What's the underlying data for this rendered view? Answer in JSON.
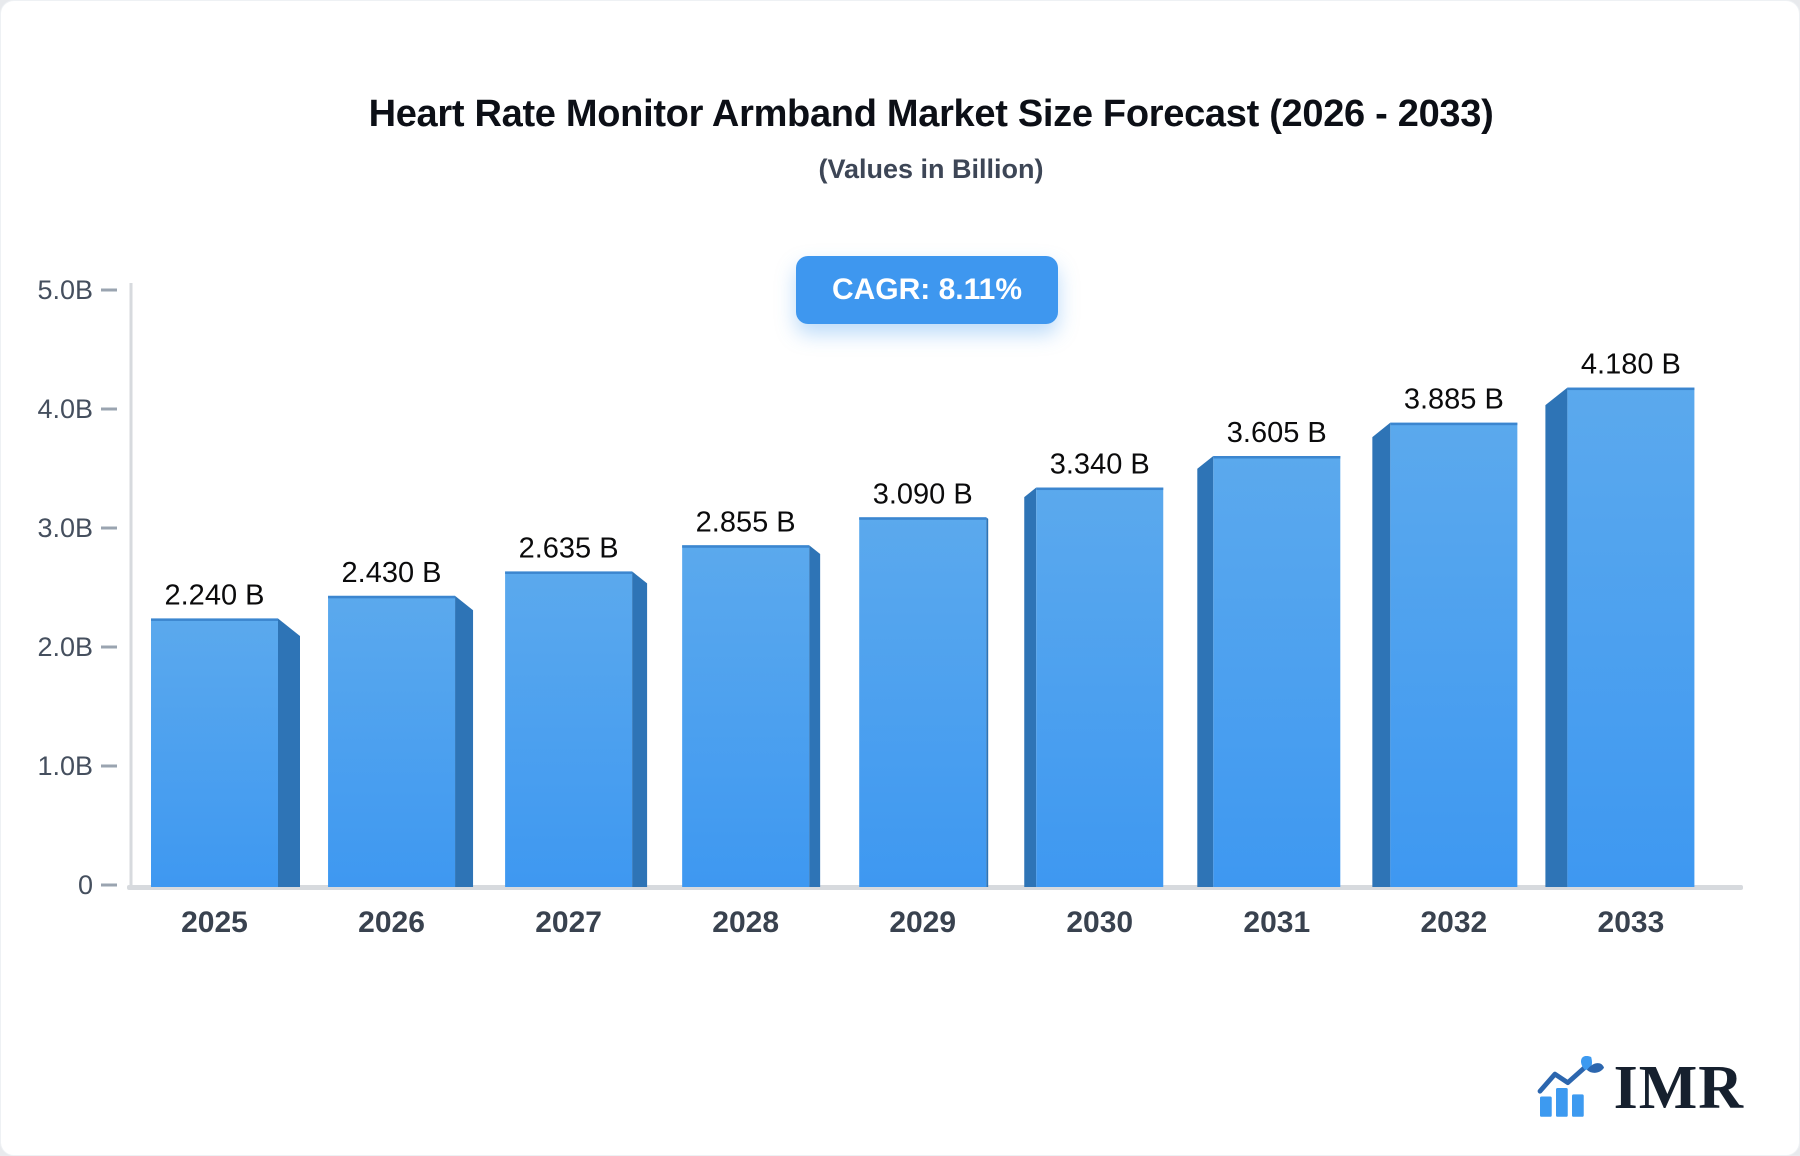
{
  "header": {
    "title": "Heart Rate Monitor Armband Market Size Forecast (2026 - 2033)",
    "subtitle": "(Values in Billion)"
  },
  "badge": {
    "label": "CAGR: 8.11%",
    "bg_color": "#3e97ef",
    "text_color": "#ffffff"
  },
  "chart_data": {
    "type": "bar",
    "title": "Heart Rate Monitor Armband Market Size Forecast (2026 - 2033)",
    "subtitle": "(Values in Billion)",
    "cagr_label": "CAGR: 8.11%",
    "categories": [
      "2025",
      "2026",
      "2027",
      "2028",
      "2029",
      "2030",
      "2031",
      "2032",
      "2033"
    ],
    "values": [
      2.24,
      2.43,
      2.635,
      2.855,
      3.09,
      3.34,
      3.605,
      3.885,
      4.18
    ],
    "value_labels": [
      "2.240 B",
      "2.430 B",
      "2.635 B",
      "2.855 B",
      "3.090 B",
      "3.340 B",
      "3.605 B",
      "3.885 B",
      "4.180 B"
    ],
    "y_ticks": [
      0,
      1,
      2,
      3,
      4,
      5
    ],
    "y_tick_labels": [
      "0",
      "1.0B",
      "2.0B",
      "3.0B",
      "4.0B",
      "5.0B"
    ],
    "ylim": [
      0,
      5
    ],
    "unit": "Billion",
    "grid": false,
    "legend": false,
    "bar_style": "3d-beveled",
    "colors": {
      "bar_top": "#5BA9ED",
      "bar_bottom": "#3E98F1",
      "bar_top_edge": "#3C86CF",
      "bar_side": "#2E74B6",
      "axis_line": "#D7DADE",
      "tick_dash": "#9AA4B0",
      "y_label": "#454F5E",
      "x_label": "#39424F",
      "value_label": "#0B0B0C"
    }
  },
  "logo": {
    "text": "IMR",
    "icon": "bar-chart-leaf-icon"
  }
}
